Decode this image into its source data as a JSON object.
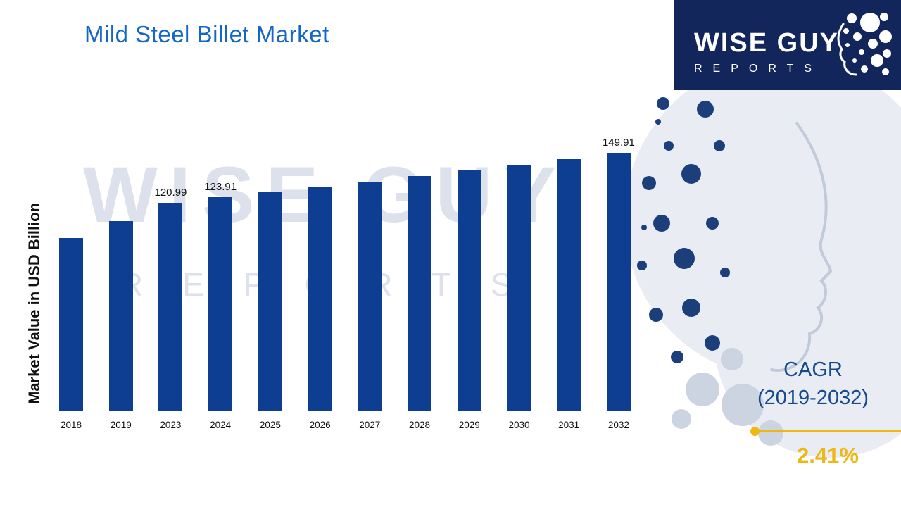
{
  "page": {
    "title": "Mild Steel Billet Market"
  },
  "y_axis": {
    "label": "Market Value in USD Billion"
  },
  "watermark": {
    "line1": "WISE GUY",
    "line2": "REPORTS"
  },
  "logo": {
    "line1": "WISE GUY",
    "line2": "REPORTS"
  },
  "cagr": {
    "label": "CAGR",
    "range": "(2019-2032)",
    "value": "2.41%"
  },
  "colors": {
    "title": "#1667c5",
    "bar": "#0d3e92",
    "navy_panel": "#13265c",
    "cagr_text": "#17498f",
    "accent_gold": "#eeb711",
    "watermark": "#dce1ec"
  },
  "chart_data": {
    "type": "bar",
    "title": "Mild Steel Billet Market",
    "xlabel": "",
    "ylabel": "Market Value in USD Billion",
    "categories": [
      "2018",
      "2019",
      "2023",
      "2024",
      "2025",
      "2026",
      "2027",
      "2028",
      "2029",
      "2030",
      "2031",
      "2032"
    ],
    "values": [
      100.5,
      110.0,
      120.99,
      123.91,
      126.9,
      129.9,
      133.1,
      136.3,
      139.5,
      142.9,
      146.3,
      149.91
    ],
    "data_labels": [
      "",
      "",
      "120.99",
      "123.91",
      "",
      "",
      "",
      "",
      "",
      "",
      "",
      "149.91"
    ],
    "ylim": [
      0,
      160
    ],
    "grid": false,
    "legend": false,
    "bar_color": "#0d3e92"
  }
}
